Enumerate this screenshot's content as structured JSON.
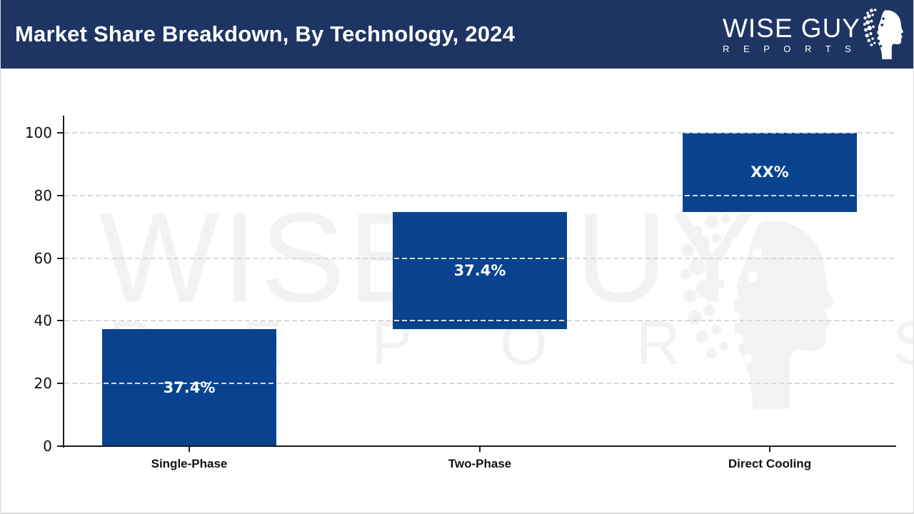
{
  "header": {
    "title": "Market Share Breakdown, By Technology, 2024",
    "logo": {
      "brand": "WISE GUY",
      "subtitle": "R E P O R T S"
    },
    "colors": {
      "background": "#1e3462",
      "text": "#ffffff"
    }
  },
  "watermark": {
    "line1": "WISE GUY",
    "line2": "R E P O R T S"
  },
  "chart_data": {
    "type": "bar",
    "subtype": "waterfall-stacked-steps",
    "title": "Market Share Breakdown, By Technology, 2024",
    "categories": [
      "Single-Phase",
      "Two-Phase",
      "Direct Cooling"
    ],
    "segments": [
      {
        "category": "Single-Phase",
        "start": 0,
        "end": 37.4,
        "value": 37.4,
        "label": "37.4%"
      },
      {
        "category": "Two-Phase",
        "start": 37.4,
        "end": 74.8,
        "value": 37.4,
        "label": "37.4%"
      },
      {
        "category": "Direct Cooling",
        "start": 74.8,
        "end": 100,
        "value": 25.2,
        "label": "XX%"
      }
    ],
    "xlabel": "",
    "ylabel": "",
    "y_ticks": [
      0,
      20,
      40,
      60,
      80,
      100
    ],
    "ylim": [
      0,
      105
    ],
    "grid": "horizontal-dashed-above-bars",
    "legend": "none",
    "colors": {
      "bar": "#09438f",
      "gridline": "#d9d9d9",
      "axis": "#1c1c1c",
      "bar_label": "#ffffff",
      "tick_label": "#111111"
    }
  }
}
